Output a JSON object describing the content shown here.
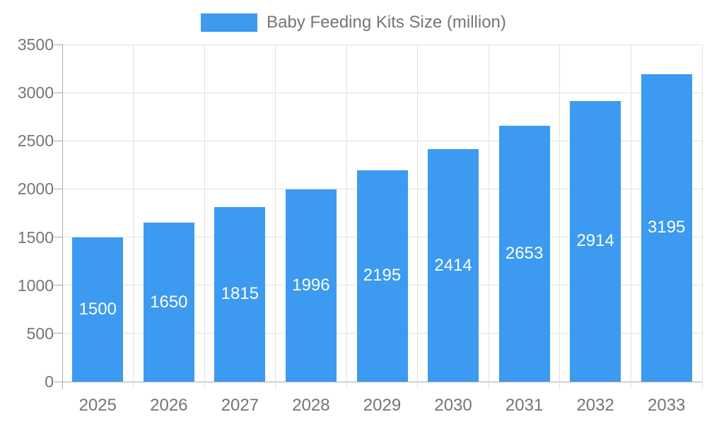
{
  "colors": {
    "bar": "#3C9AF0",
    "text": "#757575",
    "grid": "#E2E2E2",
    "axis": "#ABABAB",
    "value_label": "#FFFFFF",
    "background": "#FFFFFF"
  },
  "legend": {
    "label": "Baby Feeding Kits Size (million)"
  },
  "chart_data": {
    "type": "bar",
    "title": "Baby Feeding Kits Size (million)",
    "categories": [
      "2025",
      "2026",
      "2027",
      "2028",
      "2029",
      "2030",
      "2031",
      "2032",
      "2033"
    ],
    "values": [
      1500,
      1650,
      1815,
      1996,
      2195,
      2414,
      2653,
      2914,
      3195
    ],
    "xlabel": "",
    "ylabel": "",
    "ylim": [
      0,
      3500
    ],
    "ytick_step": 500,
    "grid": true,
    "legend_position": "top",
    "value_labels": "inside-center-white"
  }
}
